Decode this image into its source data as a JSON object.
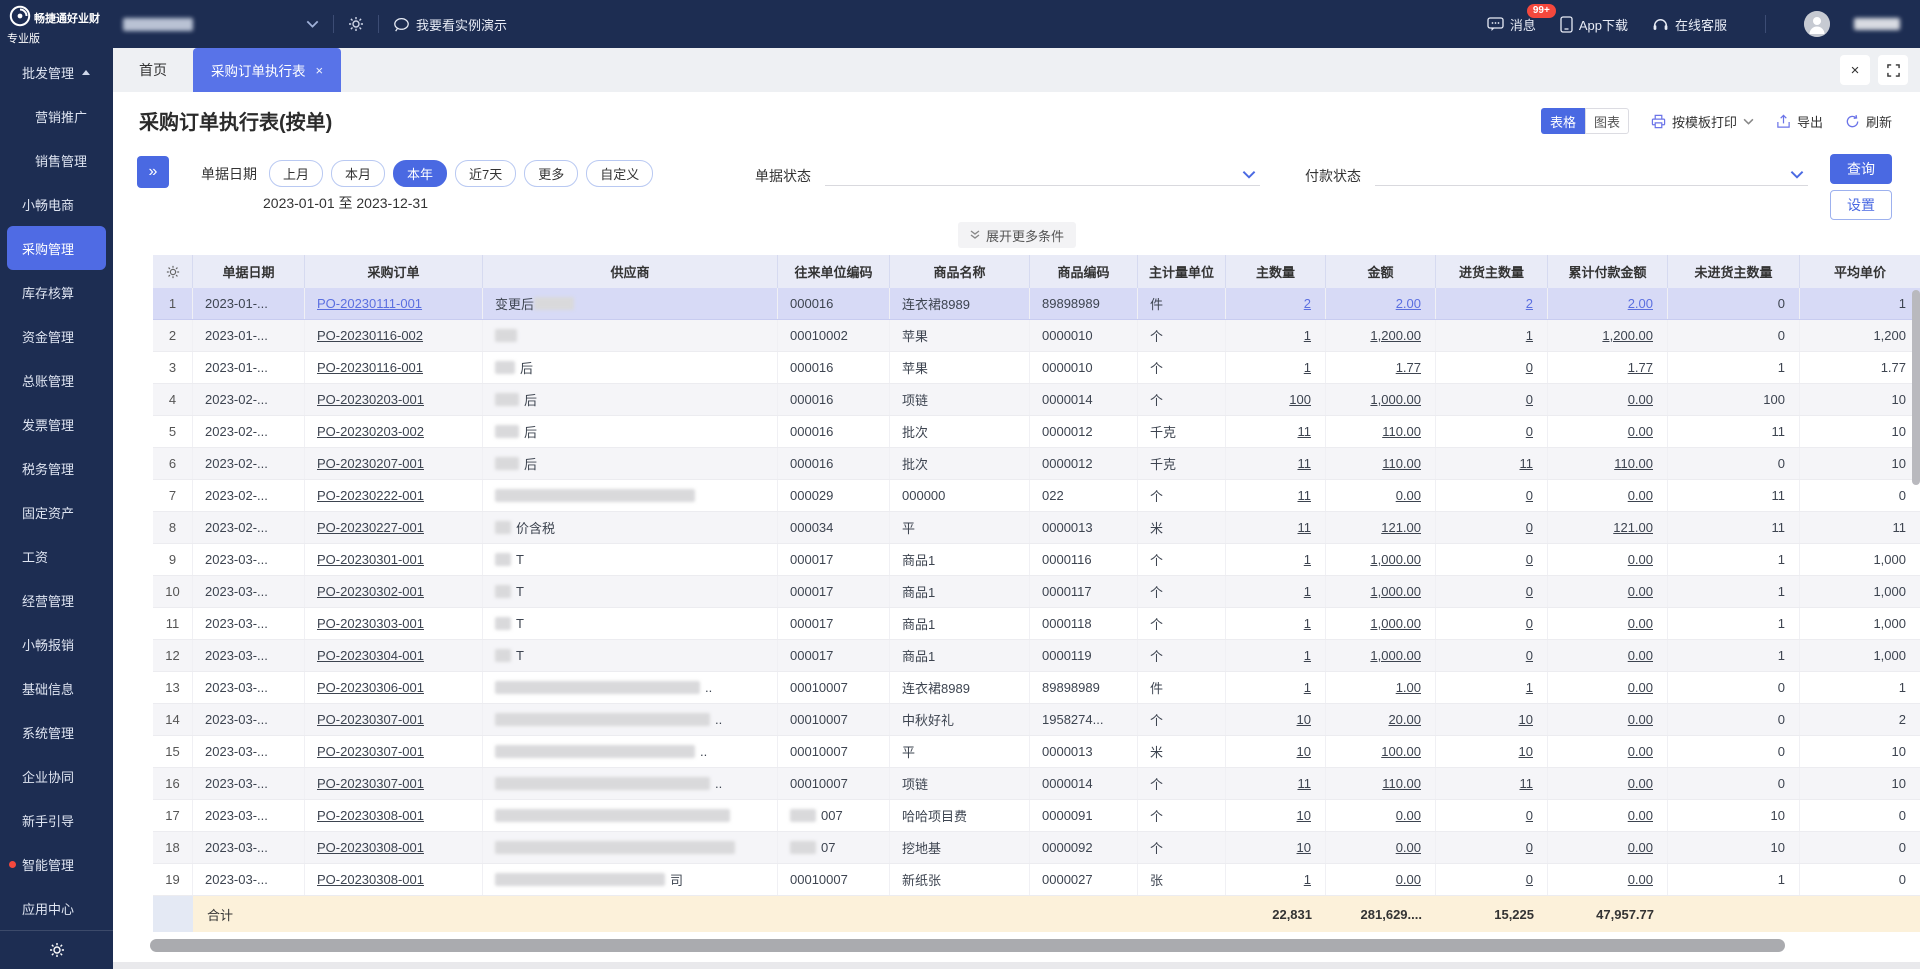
{
  "colors": {
    "accent": "#4a69e2",
    "topbar": "#1d2d52",
    "tab_active": "#5873e8",
    "selected_row": "#d7daf6",
    "footer_bg": "#fcf1da",
    "badge": "#f5483d"
  },
  "topbar": {
    "brand_name": "畅捷通好业财",
    "brand_edition": "专业版",
    "demo_link": "我要看实例演示",
    "messages": "消息",
    "messages_badge": "99+",
    "app_download": "App下载",
    "online_service": "在线客服"
  },
  "sidebar": {
    "items": [
      {
        "label": "批发管理",
        "arrow": true
      },
      {
        "label": "营销推广",
        "sub": true
      },
      {
        "label": "销售管理",
        "sub": true
      },
      {
        "label": "小畅电商"
      },
      {
        "label": "采购管理",
        "active": true
      },
      {
        "label": "库存核算"
      },
      {
        "label": "资金管理"
      },
      {
        "label": "总账管理"
      },
      {
        "label": "发票管理"
      },
      {
        "label": "税务管理"
      },
      {
        "label": "固定资产"
      },
      {
        "label": "工资"
      },
      {
        "label": "经营管理"
      },
      {
        "label": "小畅报销"
      },
      {
        "label": "基础信息"
      },
      {
        "label": "系统管理"
      },
      {
        "label": "企业协同"
      },
      {
        "label": "新手引导"
      },
      {
        "label": "智能管理",
        "dot": true
      },
      {
        "label": "应用中心"
      }
    ]
  },
  "tabbar": {
    "home": "首页",
    "active": "采购订单执行表"
  },
  "page": {
    "title": "采购订单执行表(按单)"
  },
  "toolbar": {
    "view_table": "表格",
    "view_chart": "图表",
    "print": "按模板打印",
    "export": "导出",
    "refresh": "刷新"
  },
  "filters": {
    "date_label": "单据日期",
    "date_options": [
      "上月",
      "本月",
      "本年",
      "近7天",
      "更多",
      "自定义"
    ],
    "date_active": "本年",
    "date_range": "2023-01-01 至 2023-12-31",
    "doc_status_label": "单据状态",
    "pay_status_label": "付款状态",
    "query_button": "查询",
    "settings_button": "设置",
    "expand_more": "展开更多条件"
  },
  "table": {
    "columns": [
      "单据日期",
      "采购订单",
      "供应商",
      "往来单位编码",
      "商品名称",
      "商品编码",
      "主计量单位",
      "主数量",
      "金额",
      "进货主数量",
      "累计付款金额",
      "未进货主数量",
      "平均单价"
    ],
    "rows": [
      {
        "n": "1",
        "date": "2023-01-...",
        "po": "PO-20230111-001",
        "sup_pre": "变更后",
        "sup_blur": 40,
        "sup_suf": "",
        "code_blur": 0,
        "code": "000016",
        "prod": "连衣裙8989",
        "pcode": "89898989",
        "uom": "件",
        "qty": "2",
        "amt": "2.00",
        "inq": "2",
        "paid": "2.00",
        "notin": "0",
        "avg": "1",
        "sel": true
      },
      {
        "n": "2",
        "date": "2023-01-...",
        "po": "PO-20230116-002",
        "sup_pre": "",
        "sup_blur": 22,
        "sup_suf": "",
        "code_blur": 0,
        "code": "00010002",
        "prod": "苹果",
        "pcode": "0000010",
        "uom": "个",
        "qty": "1",
        "amt": "1,200.00",
        "inq": "1",
        "paid": "1,200.00",
        "notin": "0",
        "avg": "1,200"
      },
      {
        "n": "3",
        "date": "2023-01-...",
        "po": "PO-20230116-001",
        "sup_pre": "",
        "sup_blur": 20,
        "sup_suf": "后",
        "code_blur": 0,
        "code": "000016",
        "prod": "苹果",
        "pcode": "0000010",
        "uom": "个",
        "qty": "1",
        "amt": "1.77",
        "inq": "0",
        "paid": "1.77",
        "notin": "1",
        "avg": "1.77"
      },
      {
        "n": "4",
        "date": "2023-02-...",
        "po": "PO-20230203-001",
        "sup_pre": "",
        "sup_blur": 24,
        "sup_suf": "后",
        "code_blur": 0,
        "code": "000016",
        "prod": "项链",
        "pcode": "0000014",
        "uom": "个",
        "qty": "100",
        "amt": "1,000.00",
        "inq": "0",
        "paid": "0.00",
        "notin": "100",
        "avg": "10"
      },
      {
        "n": "5",
        "date": "2023-02-...",
        "po": "PO-20230203-002",
        "sup_pre": "",
        "sup_blur": 24,
        "sup_suf": "后",
        "code_blur": 0,
        "code": "000016",
        "prod": "批次",
        "pcode": "0000012",
        "uom": "千克",
        "qty": "11",
        "amt": "110.00",
        "inq": "0",
        "paid": "0.00",
        "notin": "11",
        "avg": "10"
      },
      {
        "n": "6",
        "date": "2023-02-...",
        "po": "PO-20230207-001",
        "sup_pre": "",
        "sup_blur": 24,
        "sup_suf": "后",
        "code_blur": 0,
        "code": "000016",
        "prod": "批次",
        "pcode": "0000012",
        "uom": "千克",
        "qty": "11",
        "amt": "110.00",
        "inq": "11",
        "paid": "110.00",
        "notin": "0",
        "avg": "10"
      },
      {
        "n": "7",
        "date": "2023-02-...",
        "po": "PO-20230222-001",
        "sup_pre": "",
        "sup_blur": 200,
        "sup_suf": "",
        "code_blur": 0,
        "code": "000029",
        "prod": "000000",
        "pcode": "022",
        "uom": "个",
        "qty": "11",
        "amt": "0.00",
        "inq": "0",
        "paid": "0.00",
        "notin": "11",
        "avg": "0"
      },
      {
        "n": "8",
        "date": "2023-02-...",
        "po": "PO-20230227-001",
        "sup_pre": "",
        "sup_blur": 16,
        "sup_suf": "价含税",
        "code_blur": 0,
        "code": "000034",
        "prod": "平",
        "pcode": "0000013",
        "uom": "米",
        "qty": "11",
        "amt": "121.00",
        "inq": "0",
        "paid": "121.00",
        "notin": "11",
        "avg": "11"
      },
      {
        "n": "9",
        "date": "2023-03-...",
        "po": "PO-20230301-001",
        "sup_pre": "",
        "sup_blur": 16,
        "sup_suf": "T",
        "code_blur": 0,
        "code": "000017",
        "prod": "商品1",
        "pcode": "0000116",
        "uom": "个",
        "qty": "1",
        "amt": "1,000.00",
        "inq": "0",
        "paid": "0.00",
        "notin": "1",
        "avg": "1,000"
      },
      {
        "n": "10",
        "date": "2023-03-...",
        "po": "PO-20230302-001",
        "sup_pre": "",
        "sup_blur": 16,
        "sup_suf": "T",
        "code_blur": 0,
        "code": "000017",
        "prod": "商品1",
        "pcode": "0000117",
        "uom": "个",
        "qty": "1",
        "amt": "1,000.00",
        "inq": "0",
        "paid": "0.00",
        "notin": "1",
        "avg": "1,000"
      },
      {
        "n": "11",
        "date": "2023-03-...",
        "po": "PO-20230303-001",
        "sup_pre": "",
        "sup_blur": 16,
        "sup_suf": "T",
        "code_blur": 0,
        "code": "000017",
        "prod": "商品1",
        "pcode": "0000118",
        "uom": "个",
        "qty": "1",
        "amt": "1,000.00",
        "inq": "0",
        "paid": "0.00",
        "notin": "1",
        "avg": "1,000"
      },
      {
        "n": "12",
        "date": "2023-03-...",
        "po": "PO-20230304-001",
        "sup_pre": "",
        "sup_blur": 16,
        "sup_suf": "T",
        "code_blur": 0,
        "code": "000017",
        "prod": "商品1",
        "pcode": "0000119",
        "uom": "个",
        "qty": "1",
        "amt": "1,000.00",
        "inq": "0",
        "paid": "0.00",
        "notin": "1",
        "avg": "1,000"
      },
      {
        "n": "13",
        "date": "2023-03-...",
        "po": "PO-20230306-001",
        "sup_pre": "",
        "sup_blur": 205,
        "sup_suf": "..",
        "code_blur": 0,
        "code": "00010007",
        "prod": "连衣裙8989",
        "pcode": "89898989",
        "uom": "件",
        "qty": "1",
        "amt": "1.00",
        "inq": "1",
        "paid": "0.00",
        "notin": "0",
        "avg": "1"
      },
      {
        "n": "14",
        "date": "2023-03-...",
        "po": "PO-20230307-001",
        "sup_pre": "",
        "sup_blur": 215,
        "sup_suf": "..",
        "code_blur": 0,
        "code": "00010007",
        "prod": "中秋好礼",
        "pcode": "1958274...",
        "uom": "个",
        "qty": "10",
        "amt": "20.00",
        "inq": "10",
        "paid": "0.00",
        "notin": "0",
        "avg": "2"
      },
      {
        "n": "15",
        "date": "2023-03-...",
        "po": "PO-20230307-001",
        "sup_pre": "",
        "sup_blur": 200,
        "sup_suf": "..",
        "code_blur": 0,
        "code": "00010007",
        "prod": "平",
        "pcode": "0000013",
        "uom": "米",
        "qty": "10",
        "amt": "100.00",
        "inq": "10",
        "paid": "0.00",
        "notin": "0",
        "avg": "10"
      },
      {
        "n": "16",
        "date": "2023-03-...",
        "po": "PO-20230307-001",
        "sup_pre": "",
        "sup_blur": 215,
        "sup_suf": "..",
        "code_blur": 0,
        "code": "00010007",
        "prod": "项链",
        "pcode": "0000014",
        "uom": "个",
        "qty": "11",
        "amt": "110.00",
        "inq": "11",
        "paid": "0.00",
        "notin": "0",
        "avg": "10"
      },
      {
        "n": "17",
        "date": "2023-03-...",
        "po": "PO-20230308-001",
        "sup_pre": "",
        "sup_blur": 235,
        "sup_suf": "",
        "code_blur": 26,
        "code": "007",
        "prod": "哈哈项目费",
        "pcode": "0000091",
        "uom": "个",
        "qty": "10",
        "amt": "0.00",
        "inq": "0",
        "paid": "0.00",
        "notin": "10",
        "avg": "0"
      },
      {
        "n": "18",
        "date": "2023-03-...",
        "po": "PO-20230308-001",
        "sup_pre": "",
        "sup_blur": 240,
        "sup_suf": "",
        "code_blur": 26,
        "code": "07",
        "prod": "挖地基",
        "pcode": "0000092",
        "uom": "个",
        "qty": "10",
        "amt": "0.00",
        "inq": "0",
        "paid": "0.00",
        "notin": "10",
        "avg": "0"
      },
      {
        "n": "19",
        "date": "2023-03-...",
        "po": "PO-20230308-001",
        "sup_pre": "",
        "sup_blur": 170,
        "sup_suf": "司",
        "code_blur": 0,
        "code": "00010007",
        "prod": "新纸张",
        "pcode": "0000027",
        "uom": "张",
        "qty": "1",
        "amt": "0.00",
        "inq": "0",
        "paid": "0.00",
        "notin": "1",
        "avg": "0"
      }
    ],
    "footer": {
      "label": "合计",
      "qty_total": "22,831",
      "amount_total": "281,629....",
      "in_qty_total": "15,225",
      "paid_total": "47,957.77"
    }
  }
}
